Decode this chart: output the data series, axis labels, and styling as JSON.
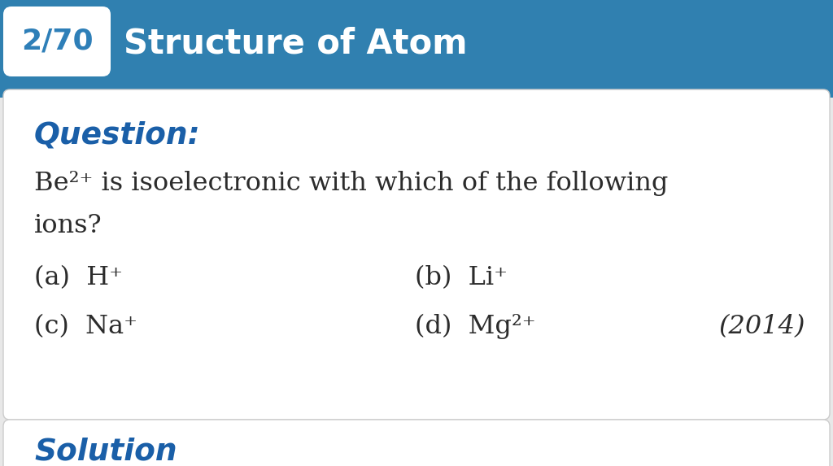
{
  "header_bg_color": "#3080b0",
  "header_text_color": "#ffffff",
  "badge_bg_color": "#ffffff",
  "badge_text_color": "#2e7fb8",
  "badge_text": "2/70",
  "header_title": "Structure of Atom",
  "question_label": "Question:",
  "question_label_color": "#1a5fa8",
  "question_text_line1": "Be²⁺ is isoelectronic with which of the following",
  "question_text_line2": "ions?",
  "year": "(2014)",
  "body_bg_color": "#e8e8e8",
  "card_bg_color": "#ffffff",
  "text_color": "#2c2c2c",
  "card_border_color": "#cccccc",
  "bottom_card_label": "Solution",
  "figsize": [
    10.24,
    5.73
  ],
  "dpi": 100
}
